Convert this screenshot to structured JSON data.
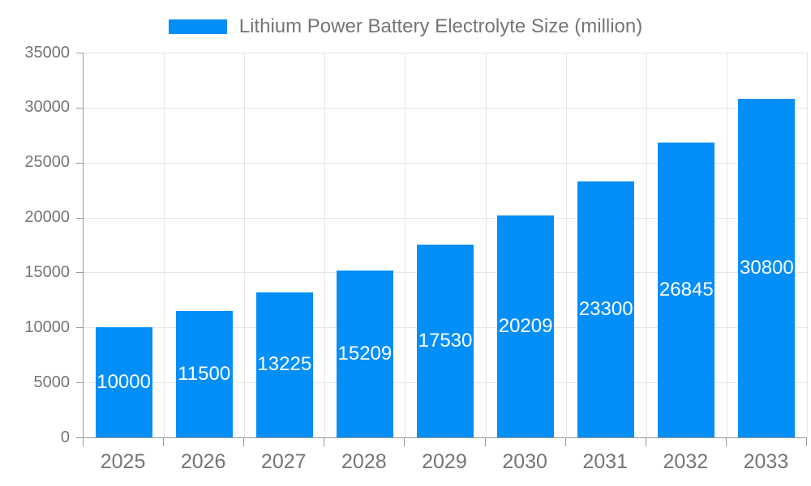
{
  "chart_data": {
    "type": "bar",
    "title": "",
    "legend": "Lithium Power Battery Electrolyte Size (million)",
    "legend_position": "top-center",
    "categories": [
      "2025",
      "2026",
      "2027",
      "2028",
      "2029",
      "2030",
      "2031",
      "2032",
      "2033"
    ],
    "values": [
      10000,
      11500,
      13225,
      15209,
      17530,
      20209,
      23300,
      26845,
      30800
    ],
    "bar_value_labels": [
      "10000",
      "11500",
      "13225",
      "15209",
      "17530",
      "20209",
      "23300",
      "26845",
      "30800"
    ],
    "xlabel": "",
    "ylabel": "",
    "ylim": [
      0,
      35000
    ],
    "ytick_step": 5000,
    "ytick_labels": [
      "0",
      "5000",
      "10000",
      "15000",
      "20000",
      "25000",
      "30000",
      "35000"
    ],
    "grid": "on",
    "colors": {
      "bar": "#048EF8",
      "bar_label_text": "#FFFFFF",
      "axis_line": "#999999",
      "grid_line": "#E6E6E6",
      "axis_text": "#757575",
      "legend_text": "#757575",
      "background": "#FFFFFF"
    }
  }
}
